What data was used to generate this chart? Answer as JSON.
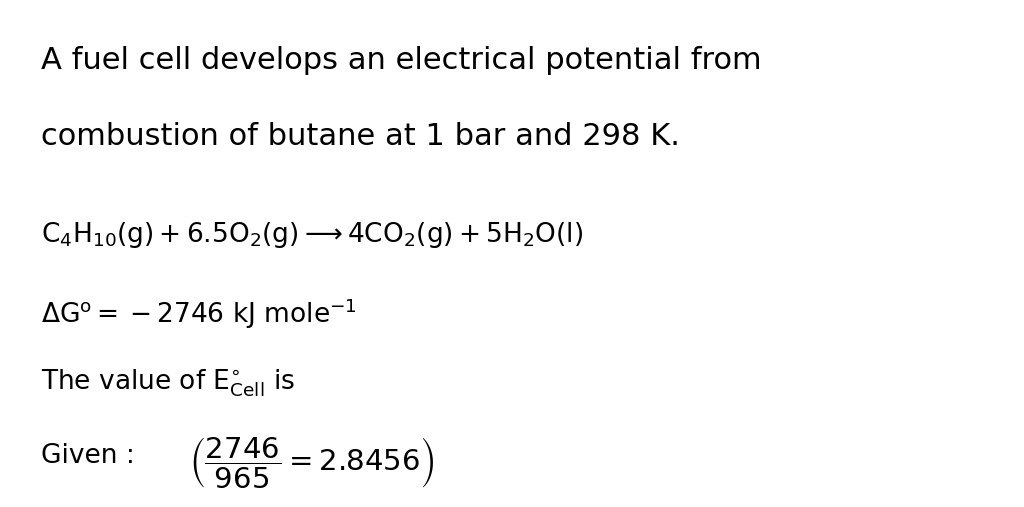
{
  "background_color": "#ffffff",
  "title_line1": "A fuel cell develops an electrical potential from",
  "title_line2": "combustion of butane at 1 bar and 298 K.",
  "figsize": [
    10.24,
    5.07
  ],
  "dpi": 100
}
